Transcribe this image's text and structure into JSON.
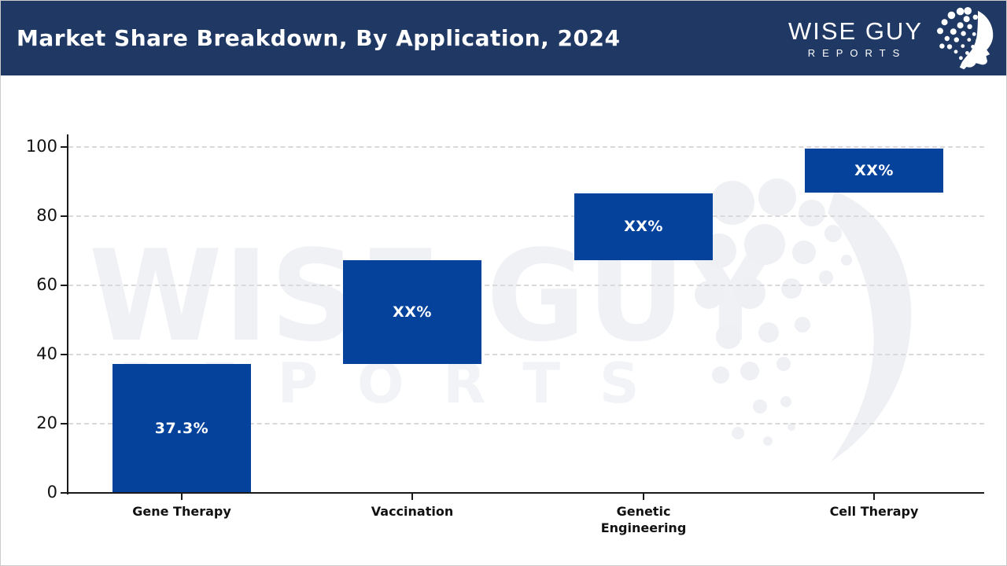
{
  "header": {
    "title": "Market Share Breakdown, By Application, 2024",
    "logo": {
      "line1": "WISE GUY",
      "line2": "REPORTS"
    }
  },
  "watermark": {
    "line1": "WISE GUY",
    "line2": "REPORTS"
  },
  "colors": {
    "header_bg": "#1f3864",
    "bar": "#04429b",
    "bar_label": "#ffffff",
    "grid": "#d9d9d9",
    "axis": "#1a1a1a",
    "watermark": "#eff1f5"
  },
  "chart_data": {
    "type": "bar",
    "subtype": "waterfall",
    "title": "Market Share Breakdown, By Application, 2024",
    "xlabel": "",
    "ylabel": "",
    "ylim": [
      0,
      100
    ],
    "yticks": [
      0,
      20,
      40,
      60,
      80,
      100
    ],
    "grid": "horizontal-dashed",
    "categories": [
      "Gene Therapy",
      "Vaccination",
      "Genetic Engineering",
      "Cell Therapy"
    ],
    "segments": [
      {
        "category": "Gene Therapy",
        "start": 0,
        "end": 37.3,
        "label": "37.3%"
      },
      {
        "category": "Vaccination",
        "start": 37.3,
        "end": 67.3,
        "label": "XX%"
      },
      {
        "category": "Genetic Engineering",
        "start": 67.3,
        "end": 86.6,
        "label": "XX%"
      },
      {
        "category": "Cell Therapy",
        "start": 86.8,
        "end": 99.5,
        "label": "XX%"
      }
    ]
  }
}
